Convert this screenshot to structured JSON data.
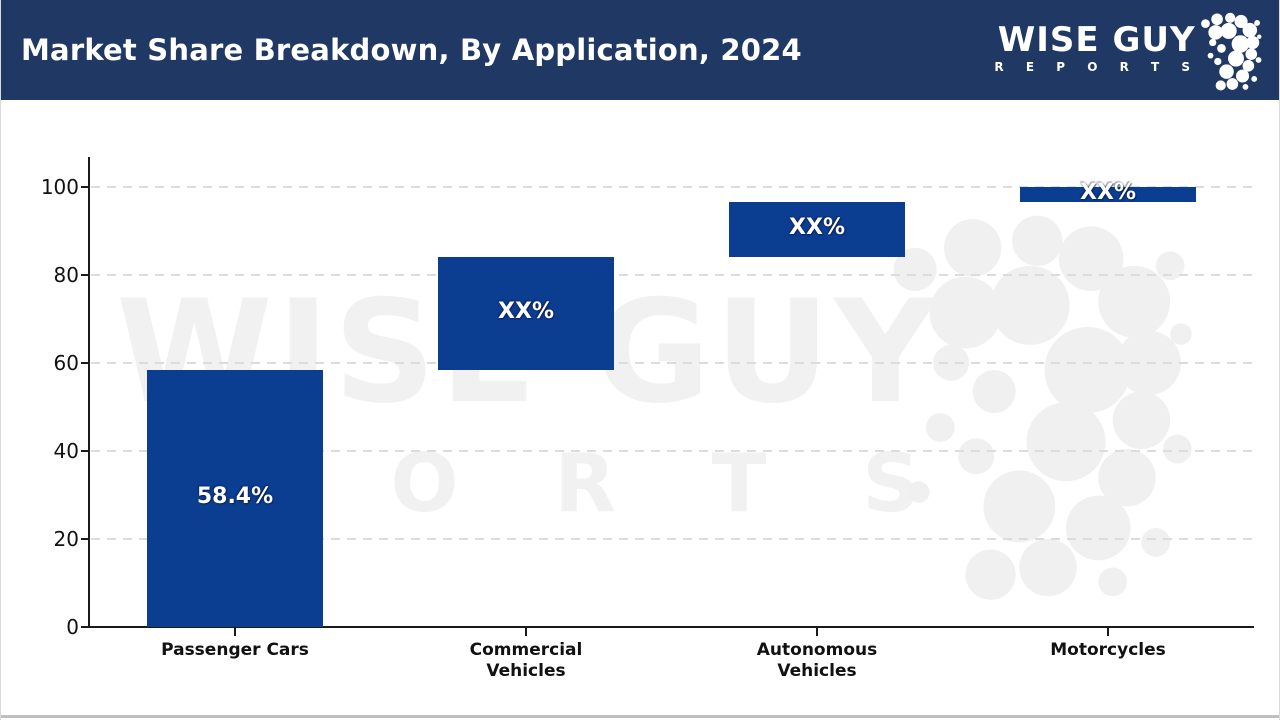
{
  "header": {
    "title": "Market Share Breakdown, By Application, 2024",
    "bg_color": "#1f3864",
    "logo": {
      "line1": "WISE GUY",
      "line2": "R E P O R T S",
      "head_icon": "dotted-head-profile"
    }
  },
  "watermark": {
    "line1": "WISE GUY",
    "line2": "P O R T S",
    "head_icon": "dotted-head-profile",
    "color": "#f1f1f1"
  },
  "chart_data": {
    "type": "bar",
    "subtype": "waterfall",
    "title": "Market Share Breakdown, By Application, 2024",
    "categories": [
      "Passenger Cars",
      "Commercial Vehicles",
      "Autonomous Vehicles",
      "Motorcycles"
    ],
    "category_label_lines": [
      [
        "Passenger Cars"
      ],
      [
        "Commercial",
        "Vehicles"
      ],
      [
        "Autonomous",
        "Vehicles"
      ],
      [
        "Motorcycles"
      ]
    ],
    "series": [
      {
        "name": "Market Share %",
        "segments": [
          {
            "category": "Passenger Cars",
            "start": 0,
            "end": 58.4,
            "value": 58.4,
            "label": "58.4%"
          },
          {
            "category": "Commercial Vehicles",
            "start": 58.4,
            "end": 84.0,
            "value": 25.6,
            "label": "XX%"
          },
          {
            "category": "Autonomous Vehicles",
            "start": 84.0,
            "end": 96.5,
            "value": 12.5,
            "label": "XX%"
          },
          {
            "category": "Motorcycles",
            "start": 96.5,
            "end": 100,
            "value": 3.5,
            "label": "XX%"
          }
        ]
      }
    ],
    "xlabel": "",
    "ylabel": "",
    "yticks": [
      0,
      20,
      40,
      60,
      80,
      100
    ],
    "ylim": [
      0,
      100
    ],
    "grid": "horizontal-dashed",
    "legend": "none",
    "bar_color": "#0b3d91",
    "grid_color": "#dcdcdc",
    "axis_color": "#1a1a1a"
  }
}
